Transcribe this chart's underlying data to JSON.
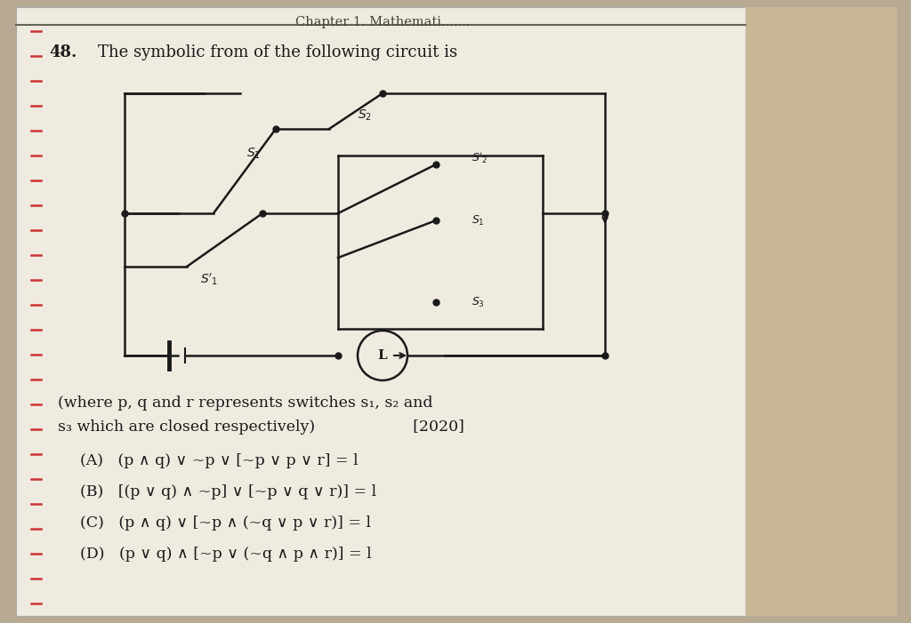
{
  "bg_outer": "#b8aa92",
  "bg_page": "#e8e0d0",
  "bg_page2": "#f0ebe0",
  "line_color": "#1a1a1a",
  "text_color": "#1a1a1a",
  "header_text": "Chapter 1. Mathemati.......",
  "question_num": "48.",
  "question_text": "The symbolic from of the following circuit is",
  "desc_line1": "(where p, q and r represents switches s₁, s₂ and",
  "desc_line2": "s₃ which are closed respectively)                    [2020]",
  "opt_A": "(A)   (p ∧ q) ∨ ~p ∨ [~p ∨ p ∨ r] = l",
  "opt_B": "(B)   [(p ∨ q) ∧ ~p] ∨ [~p ∨ q ∨ r)] = l",
  "opt_C": "(C)   (p ∧ q) ∨ [~p ∧ (~q ∨ p ∨ r)] = l",
  "opt_D": "(D)   (p ∨ q) ∧ [~p ∨ (~q ∧ p ∧ r)] = l"
}
